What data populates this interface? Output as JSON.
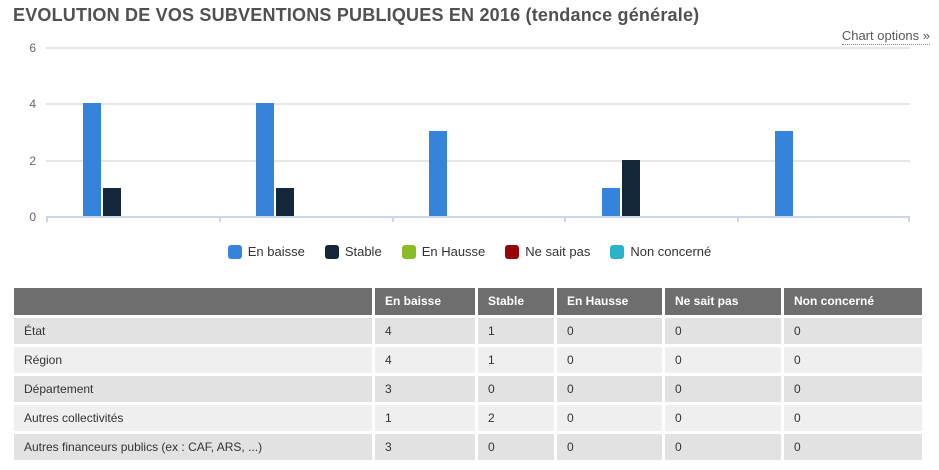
{
  "header": {
    "title": "EVOLUTION DE VOS SUBVENTIONS PUBLIQUES EN 2016 (tendance générale)",
    "chart_options_label": "Chart options »"
  },
  "chart_data": {
    "type": "bar",
    "title": "EVOLUTION DE VOS SUBVENTIONS PUBLIQUES EN 2016 (tendance générale)",
    "categories": [
      "État",
      "Région",
      "Département",
      "Autres collectivités",
      "Autres financeurs publics (ex : CAF, ARS, ...)"
    ],
    "series": [
      {
        "name": "En baisse",
        "color": "#3583da",
        "values": [
          4,
          4,
          3,
          1,
          3
        ]
      },
      {
        "name": "Stable",
        "color": "#142639",
        "values": [
          1,
          1,
          0,
          2,
          0
        ]
      },
      {
        "name": "En Hausse",
        "color": "#8abc29",
        "values": [
          0,
          0,
          0,
          0,
          0
        ]
      },
      {
        "name": "Ne sait pas",
        "color": "#990408",
        "values": [
          0,
          0,
          0,
          0,
          0
        ]
      },
      {
        "name": "Non concerné",
        "color": "#29b4ca",
        "values": [
          0,
          0,
          0,
          0,
          0
        ]
      }
    ],
    "xlabel": "",
    "ylabel": "",
    "ylim": [
      0,
      6
    ],
    "yticks": [
      0,
      2,
      4,
      6
    ],
    "grid": true,
    "legend_position": "bottom",
    "x_tick_labels_visible": false
  },
  "table": {
    "columns": [
      "",
      "En baisse",
      "Stable",
      "En Hausse",
      "Ne sait pas",
      "Non concerné"
    ],
    "rows": [
      {
        "label": "État",
        "values": [
          4,
          1,
          0,
          0,
          0
        ]
      },
      {
        "label": "Région",
        "values": [
          4,
          1,
          0,
          0,
          0
        ]
      },
      {
        "label": "Département",
        "values": [
          3,
          0,
          0,
          0,
          0
        ]
      },
      {
        "label": "Autres collectivités",
        "values": [
          1,
          2,
          0,
          0,
          0
        ]
      },
      {
        "label": "Autres financeurs publics (ex : CAF, ARS, ...)",
        "values": [
          3,
          0,
          0,
          0,
          0
        ]
      }
    ]
  },
  "colors": {
    "title_text": "#515151",
    "link_text": "#595959",
    "gridline": "#e6e6e6",
    "axis_line": "#ccd6eb",
    "axis_label": "#666666",
    "legend_text": "#333333",
    "table_header_bg": "#6e6e6e",
    "table_header_text": "#ffffff",
    "table_row_odd_bg": "#e2e2e2",
    "table_row_even_bg": "#efefef",
    "table_text": "#333333"
  }
}
